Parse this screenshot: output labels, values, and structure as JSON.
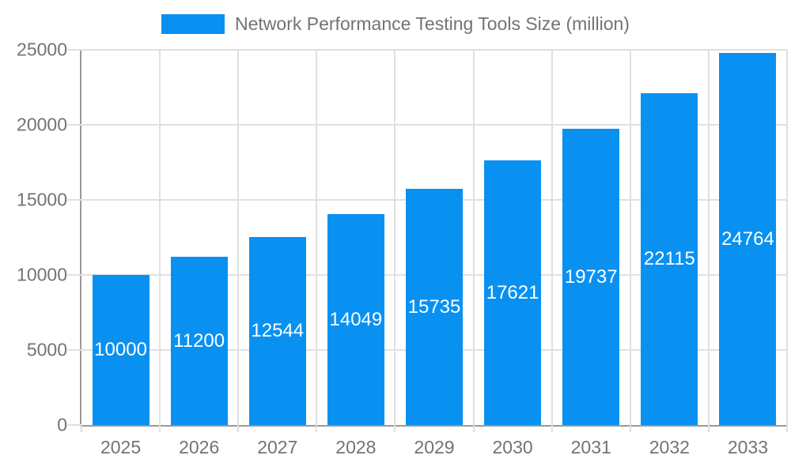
{
  "chart_data": {
    "type": "bar",
    "categories": [
      "2025",
      "2026",
      "2027",
      "2028",
      "2029",
      "2030",
      "2031",
      "2032",
      "2033"
    ],
    "series": [
      {
        "name": "Network Performance Testing Tools Size (million)",
        "color": "#0991F2",
        "values": [
          10000,
          11200,
          12544,
          14049,
          15735,
          17621,
          19737,
          22115,
          24764
        ]
      }
    ],
    "xlabel": "",
    "ylabel": "",
    "ylim": [
      0,
      25000
    ],
    "yticks": [
      0,
      5000,
      10000,
      15000,
      20000,
      25000
    ],
    "grid": "both",
    "legend_position": "top",
    "bar_label_position": "middle",
    "colors": {
      "bar": "#0991F2",
      "bar_label_text": "#FFFFFF",
      "axis_text": "#737373",
      "gridline": "#E0E0E0",
      "axis_line": "#999999",
      "background": "#FFFFFF"
    }
  }
}
